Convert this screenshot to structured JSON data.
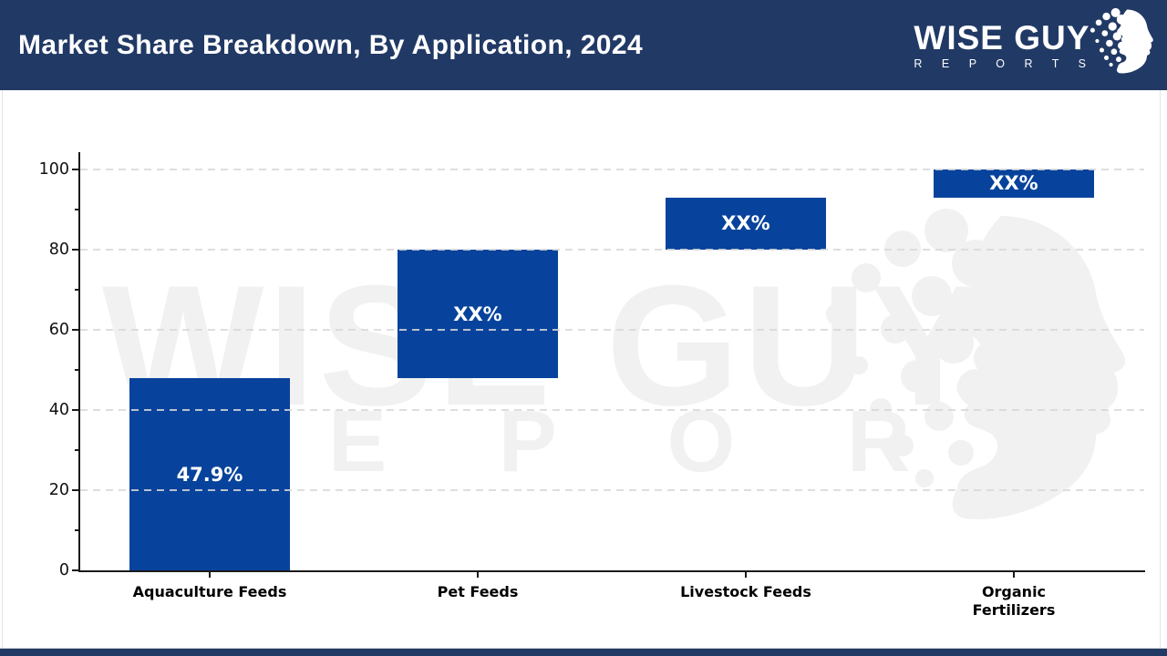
{
  "header": {
    "title": "Market Share Breakdown, By Application, 2024",
    "logo": {
      "line1": "WISE GUY",
      "line2": "R E P O R T S"
    }
  },
  "watermark": {
    "line1": "WISE GUY",
    "line2": "R E P O R T S"
  },
  "colors": {
    "header_bg": "#213965",
    "footer_bg": "#213965",
    "bar": "#07439c",
    "watermark": "#f1f1f1",
    "bar_label": "#ffffff"
  },
  "chart_data": {
    "type": "bar",
    "subtype": "waterfall",
    "title": "Market Share Breakdown, By Application, 2024",
    "categories": [
      "Aquaculture Feeds",
      "Pet Feeds",
      "Livestock Feeds",
      "Organic\nFertilizers"
    ],
    "segments": [
      {
        "category": "Aquaculture Feeds",
        "start": 0,
        "end": 47.9,
        "label": "47.9%"
      },
      {
        "category": "Pet Feeds",
        "start": 47.9,
        "end": 80,
        "label": "XX%"
      },
      {
        "category": "Livestock Feeds",
        "start": 80,
        "end": 93,
        "label": "XX%"
      },
      {
        "category": "Organic Fertilizers",
        "start": 93,
        "end": 100,
        "label": "XX%"
      }
    ],
    "visible_value_labels": [
      "47.9%",
      "XX%",
      "XX%",
      "XX%"
    ],
    "yticks": [
      0,
      20,
      40,
      60,
      80,
      100
    ],
    "yticks_minor": [
      10,
      30,
      50,
      70,
      90
    ],
    "ylim": [
      0,
      105
    ],
    "xlabel": "",
    "ylabel": "",
    "grid": "horizontal-dashed",
    "legend": "none",
    "bar_color": "#07439c"
  }
}
